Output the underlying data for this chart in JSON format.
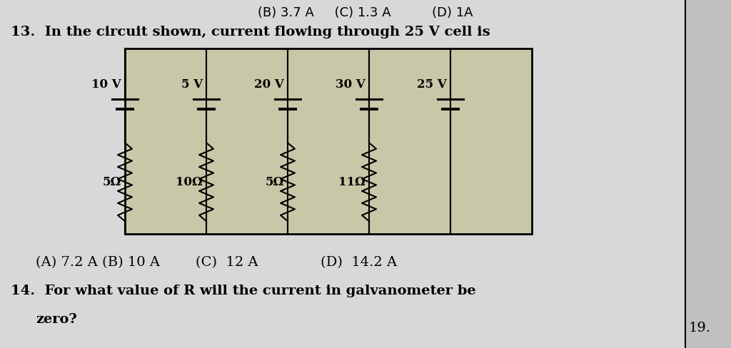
{
  "bg_color": "#c8c8c8",
  "page_bg": "#d0d0d0",
  "title_top": "(B) 3.7 A     (C) 1.3 A          (D) 1A",
  "question13": "13.  In the circuit shown, current flowing through 25 V cell is",
  "question14_line1": "14.  For what value of R will the current in galvanometer be",
  "question14_line2": "zero?",
  "answers": "(A) 7.2 A (B) 10 A        (C)  12 A              (D)  14.2 A",
  "page_num": "19.",
  "circuit": {
    "voltages": [
      "10 V",
      "5 V",
      "20 V",
      "30 V",
      "25 V"
    ],
    "resistors": [
      "5Ω",
      "10Ω",
      "5Ω",
      "11Ω"
    ]
  },
  "font_size_main": 14,
  "font_size_circuit": 12
}
